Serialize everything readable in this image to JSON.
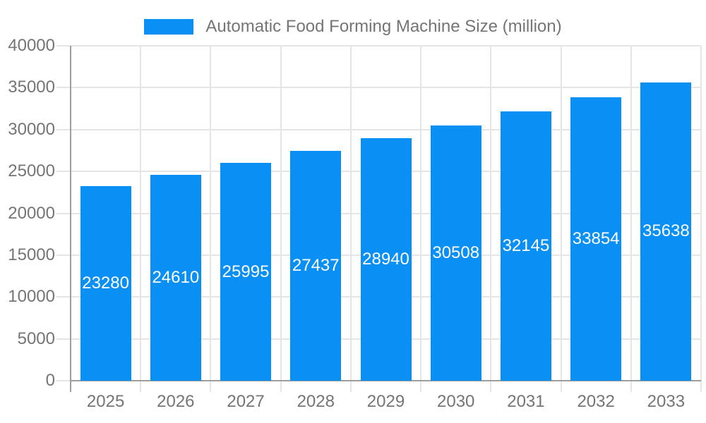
{
  "chart_data": {
    "type": "bar",
    "series": "Automatic Food Forming Machine Size (million)",
    "categories": [
      "2025",
      "2026",
      "2027",
      "2028",
      "2029",
      "2030",
      "2031",
      "2032",
      "2033"
    ],
    "values": [
      23280,
      24610,
      25995,
      27437,
      28940,
      30508,
      32145,
      33854,
      35638
    ],
    "title": "",
    "xlabel": "",
    "ylabel": "",
    "ylim": [
      0,
      40000
    ],
    "yticks": [
      0,
      5000,
      10000,
      15000,
      20000,
      25000,
      30000,
      35000,
      40000
    ],
    "grid": true,
    "legend_position": "top",
    "value_labels": "white, centered inside bars"
  },
  "colors": {
    "bar": "#0a8ff5",
    "grid": "#e5e5e5",
    "axis": "#9e9e9e",
    "text": "#757575",
    "value_text": "#ffffff",
    "background": "#ffffff"
  }
}
